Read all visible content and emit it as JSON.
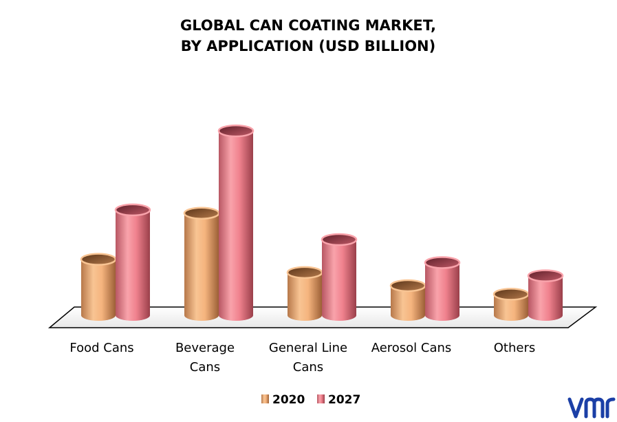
{
  "chart_data": {
    "type": "bar",
    "title": [
      "GLOBAL CAN COATING  MARKET,",
      "BY APPLICATION (USD BILLION)"
    ],
    "categories": [
      [
        "Food Cans"
      ],
      [
        "Beverage",
        "Cans"
      ],
      [
        "General Line",
        "Cans"
      ],
      [
        "Aerosol Cans"
      ],
      [
        "Others"
      ]
    ],
    "series": [
      {
        "name": "2020",
        "values": [
          0.85,
          1.55,
          0.65,
          0.45,
          0.32
        ]
      },
      {
        "name": "2027",
        "values": [
          1.6,
          2.8,
          1.15,
          0.8,
          0.6
        ]
      }
    ],
    "ylim": [
      0,
      3.0
    ],
    "grid": false,
    "legend": "bottom",
    "colors": {
      "2020": "#f5b47e",
      "2027": "#f0828e"
    }
  },
  "logo": {
    "text": "vmr",
    "color": "#1b3fa6"
  }
}
